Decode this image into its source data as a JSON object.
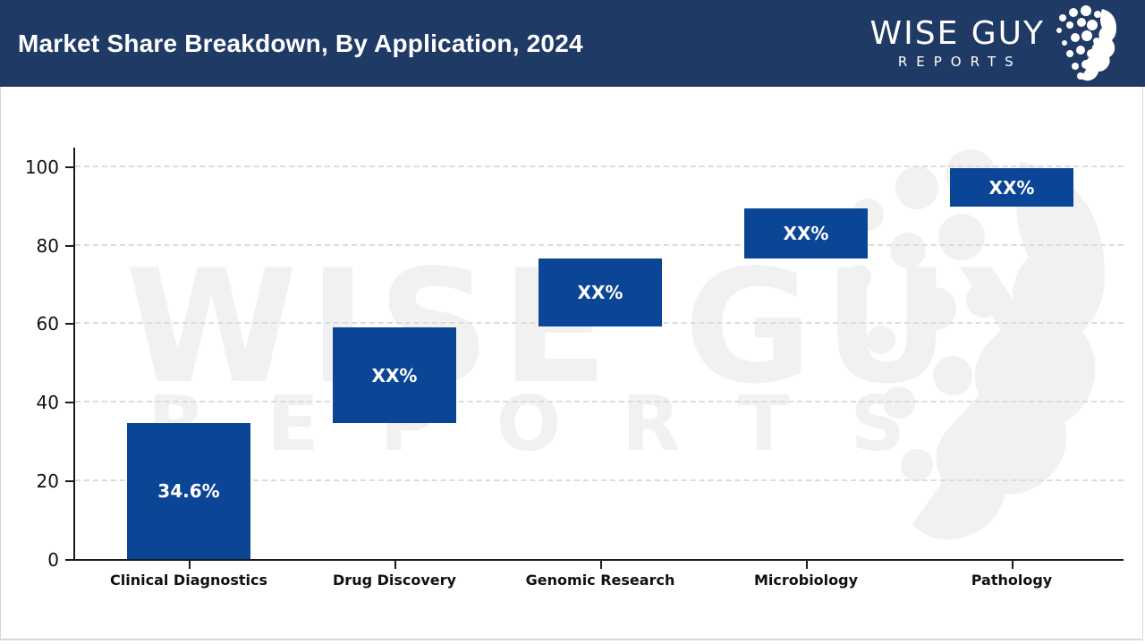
{
  "header": {
    "title": "Market Share Breakdown, By Application, 2024",
    "bg_color": "#203a66",
    "logo": {
      "line1": "WISE GUY",
      "line2": "REPORTS"
    }
  },
  "watermark": {
    "line1": "WISE GUY",
    "line2": "REPORTS"
  },
  "chart_data": {
    "type": "bar",
    "subtype": "waterfall",
    "title": "Market Share Breakdown, By Application, 2024",
    "xlabel": "",
    "ylabel": "",
    "ylim": [
      0,
      100
    ],
    "yticks": [
      0,
      20,
      40,
      60,
      80,
      100
    ],
    "grid": "horizontal-dashed",
    "legend": "none",
    "bar_color": "#0b4596",
    "value_label_color": "#ffffff",
    "categories": [
      "Clinical Diagnostics",
      "Drug Discovery",
      "Genomic Research",
      "Microbiology",
      "Pathology"
    ],
    "segments": [
      {
        "category": "Clinical Diagnostics",
        "start": 0,
        "end": 34.6,
        "label": "34.6%"
      },
      {
        "category": "Drug Discovery",
        "start": 34.6,
        "end": 58.9,
        "label": "XX%"
      },
      {
        "category": "Genomic Research",
        "start": 59.2,
        "end": 76.4,
        "label": "XX%"
      },
      {
        "category": "Microbiology",
        "start": 76.6,
        "end": 89.3,
        "label": "XX%"
      },
      {
        "category": "Pathology",
        "start": 89.6,
        "end": 99.6,
        "label": "XX%"
      }
    ]
  }
}
